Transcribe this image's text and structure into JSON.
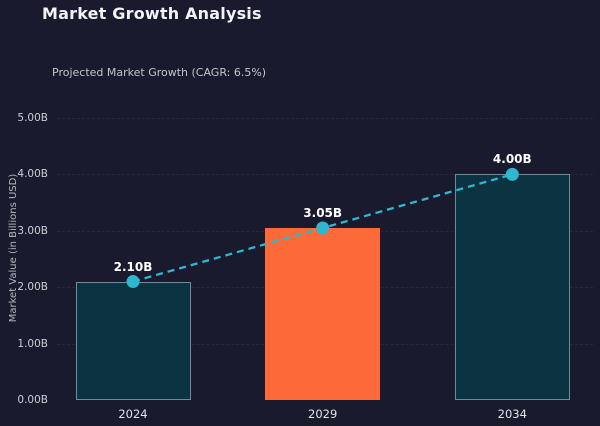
{
  "header": {
    "title": "Market Growth Analysis",
    "subtitle": "Projected Market Growth (CAGR: 6.5%)"
  },
  "chart_data": {
    "type": "bar",
    "title": "Market Growth Analysis",
    "subtitle": "Projected Market Growth (CAGR: 6.5%)",
    "categories": [
      "2024",
      "2029",
      "2034"
    ],
    "values": [
      2.1,
      3.05,
      4.0
    ],
    "value_labels": [
      "2.10B",
      "3.05B",
      "4.00B"
    ],
    "xlabel": "",
    "ylabel": "Market Value (in Billions USD)",
    "ylim": [
      0,
      5
    ],
    "ytick_values": [
      0,
      1,
      2,
      3,
      4,
      5
    ],
    "ytick_labels": [
      "0.00B",
      "1.00B",
      "2.00B",
      "3.00B",
      "4.00B",
      "5.00B"
    ],
    "grid": true,
    "legend": "none",
    "bar_colors": [
      "#0c3342",
      "#fb6a38",
      "#0c3342"
    ],
    "bar_styles": [
      "teal",
      "orange",
      "teal"
    ],
    "overlay_line": {
      "type": "line",
      "dashed": true,
      "color": "#2fb8cc",
      "marker": "circle",
      "marker_color": "#2db8cf",
      "x": [
        "2024",
        "2029",
        "2034"
      ],
      "values": [
        2.1,
        3.05,
        4.0
      ]
    },
    "background_color": "#1a1a2e"
  }
}
